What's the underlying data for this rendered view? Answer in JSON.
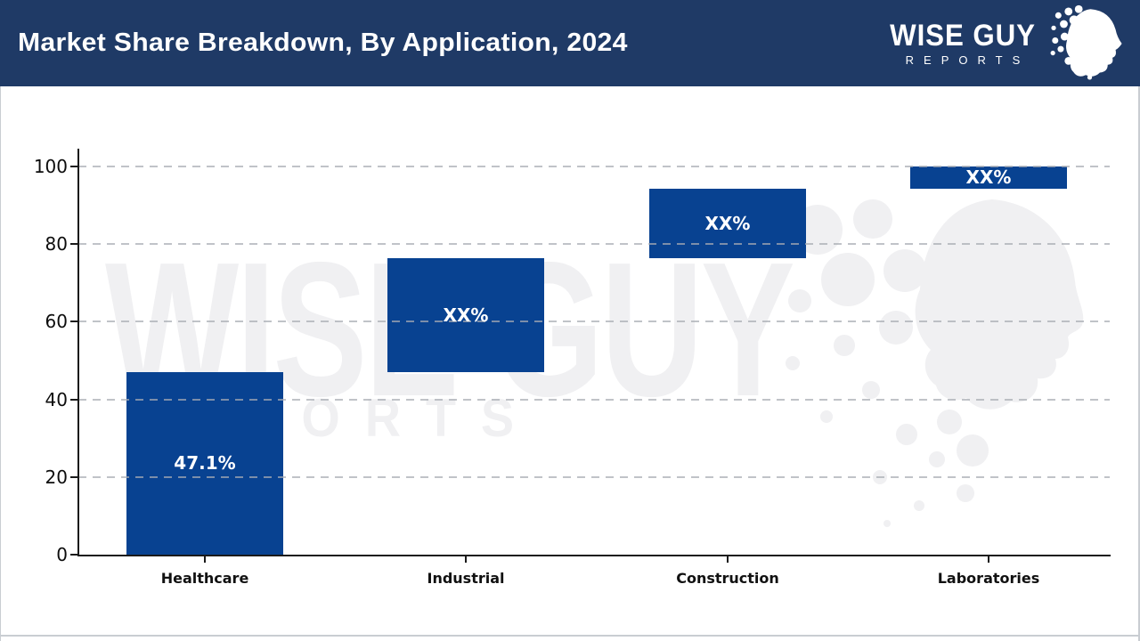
{
  "header": {
    "title": "Market Share Breakdown, By Application, 2024",
    "logo": {
      "line1": "WISE GUY",
      "line2": "REPORTS"
    }
  },
  "watermark": {
    "line1": "WISE GUY",
    "line2": "REPORTS"
  },
  "colors": {
    "header_bg": "#1f3a66",
    "bar_fill": "#084291",
    "bar_label_text": "#ffffff",
    "watermark_gray": "#f0f0f2",
    "gridline_gray": "#a8acb3",
    "axis_black": "#1a1a1a"
  },
  "chart_data": {
    "type": "bar",
    "subtype": "waterfall",
    "title": "Market Share Breakdown, By Application, 2024",
    "xlabel": "",
    "ylabel": "",
    "ylim": [
      0,
      100
    ],
    "yticks": [
      0,
      20,
      40,
      60,
      80,
      100
    ],
    "grid": true,
    "grid_style": "dashed",
    "legend": false,
    "categories": [
      "Healthcare",
      "Industrial",
      "Construction",
      "Laboratories"
    ],
    "segments": [
      {
        "category": "Healthcare",
        "start": 0,
        "end": 47.1,
        "label": "47.1%"
      },
      {
        "category": "Industrial",
        "start": 47.1,
        "end": 76.3,
        "label": "XX%"
      },
      {
        "category": "Construction",
        "start": 76.3,
        "end": 94.3,
        "label": "XX%"
      },
      {
        "category": "Laboratories",
        "start": 94.3,
        "end": 100,
        "label": "XX%"
      }
    ]
  }
}
